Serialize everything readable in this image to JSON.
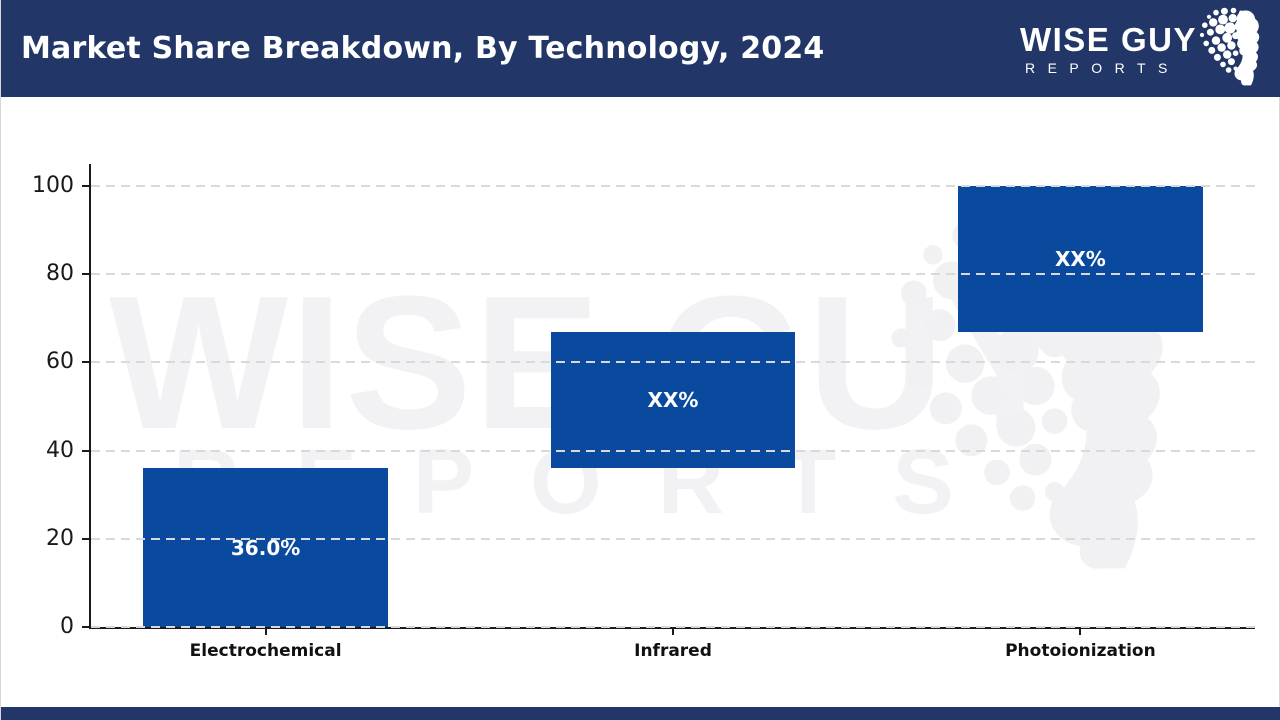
{
  "header": {
    "title": "Market Share Breakdown, By Technology, 2024",
    "logo": {
      "line1": "WISE GUY",
      "line2": "REPORTS"
    }
  },
  "watermark": {
    "line1": "WISE GUY",
    "line2": "REPORTS"
  },
  "chart_data": {
    "type": "bar",
    "subtype": "floating-segment-waterfall",
    "title": "Market Share Breakdown, By Technology, 2024",
    "categories": [
      "Electrochemical",
      "Infrared",
      "Photoionization"
    ],
    "segments": [
      {
        "category": "Electrochemical",
        "start": 0,
        "end": 36,
        "label": "36.0%"
      },
      {
        "category": "Infrared",
        "start": 36,
        "end": 67,
        "label": "XX%"
      },
      {
        "category": "Photoionization",
        "start": 67,
        "end": 100,
        "label": "XX%"
      }
    ],
    "yticks": [
      0,
      20,
      40,
      60,
      80,
      100
    ],
    "ylim": [
      0,
      105
    ],
    "xlabel": "",
    "ylabel": "",
    "grid": "horizontal-dashed",
    "legend": "none"
  },
  "colors": {
    "header_bg": "#223768",
    "footer_bg": "#223768",
    "bar": "#0a4a9e",
    "bar_label": "#ffffff",
    "gridline": "#d9d9d9",
    "axis": "#1a1a1a",
    "watermark": "#f2f2f4"
  }
}
